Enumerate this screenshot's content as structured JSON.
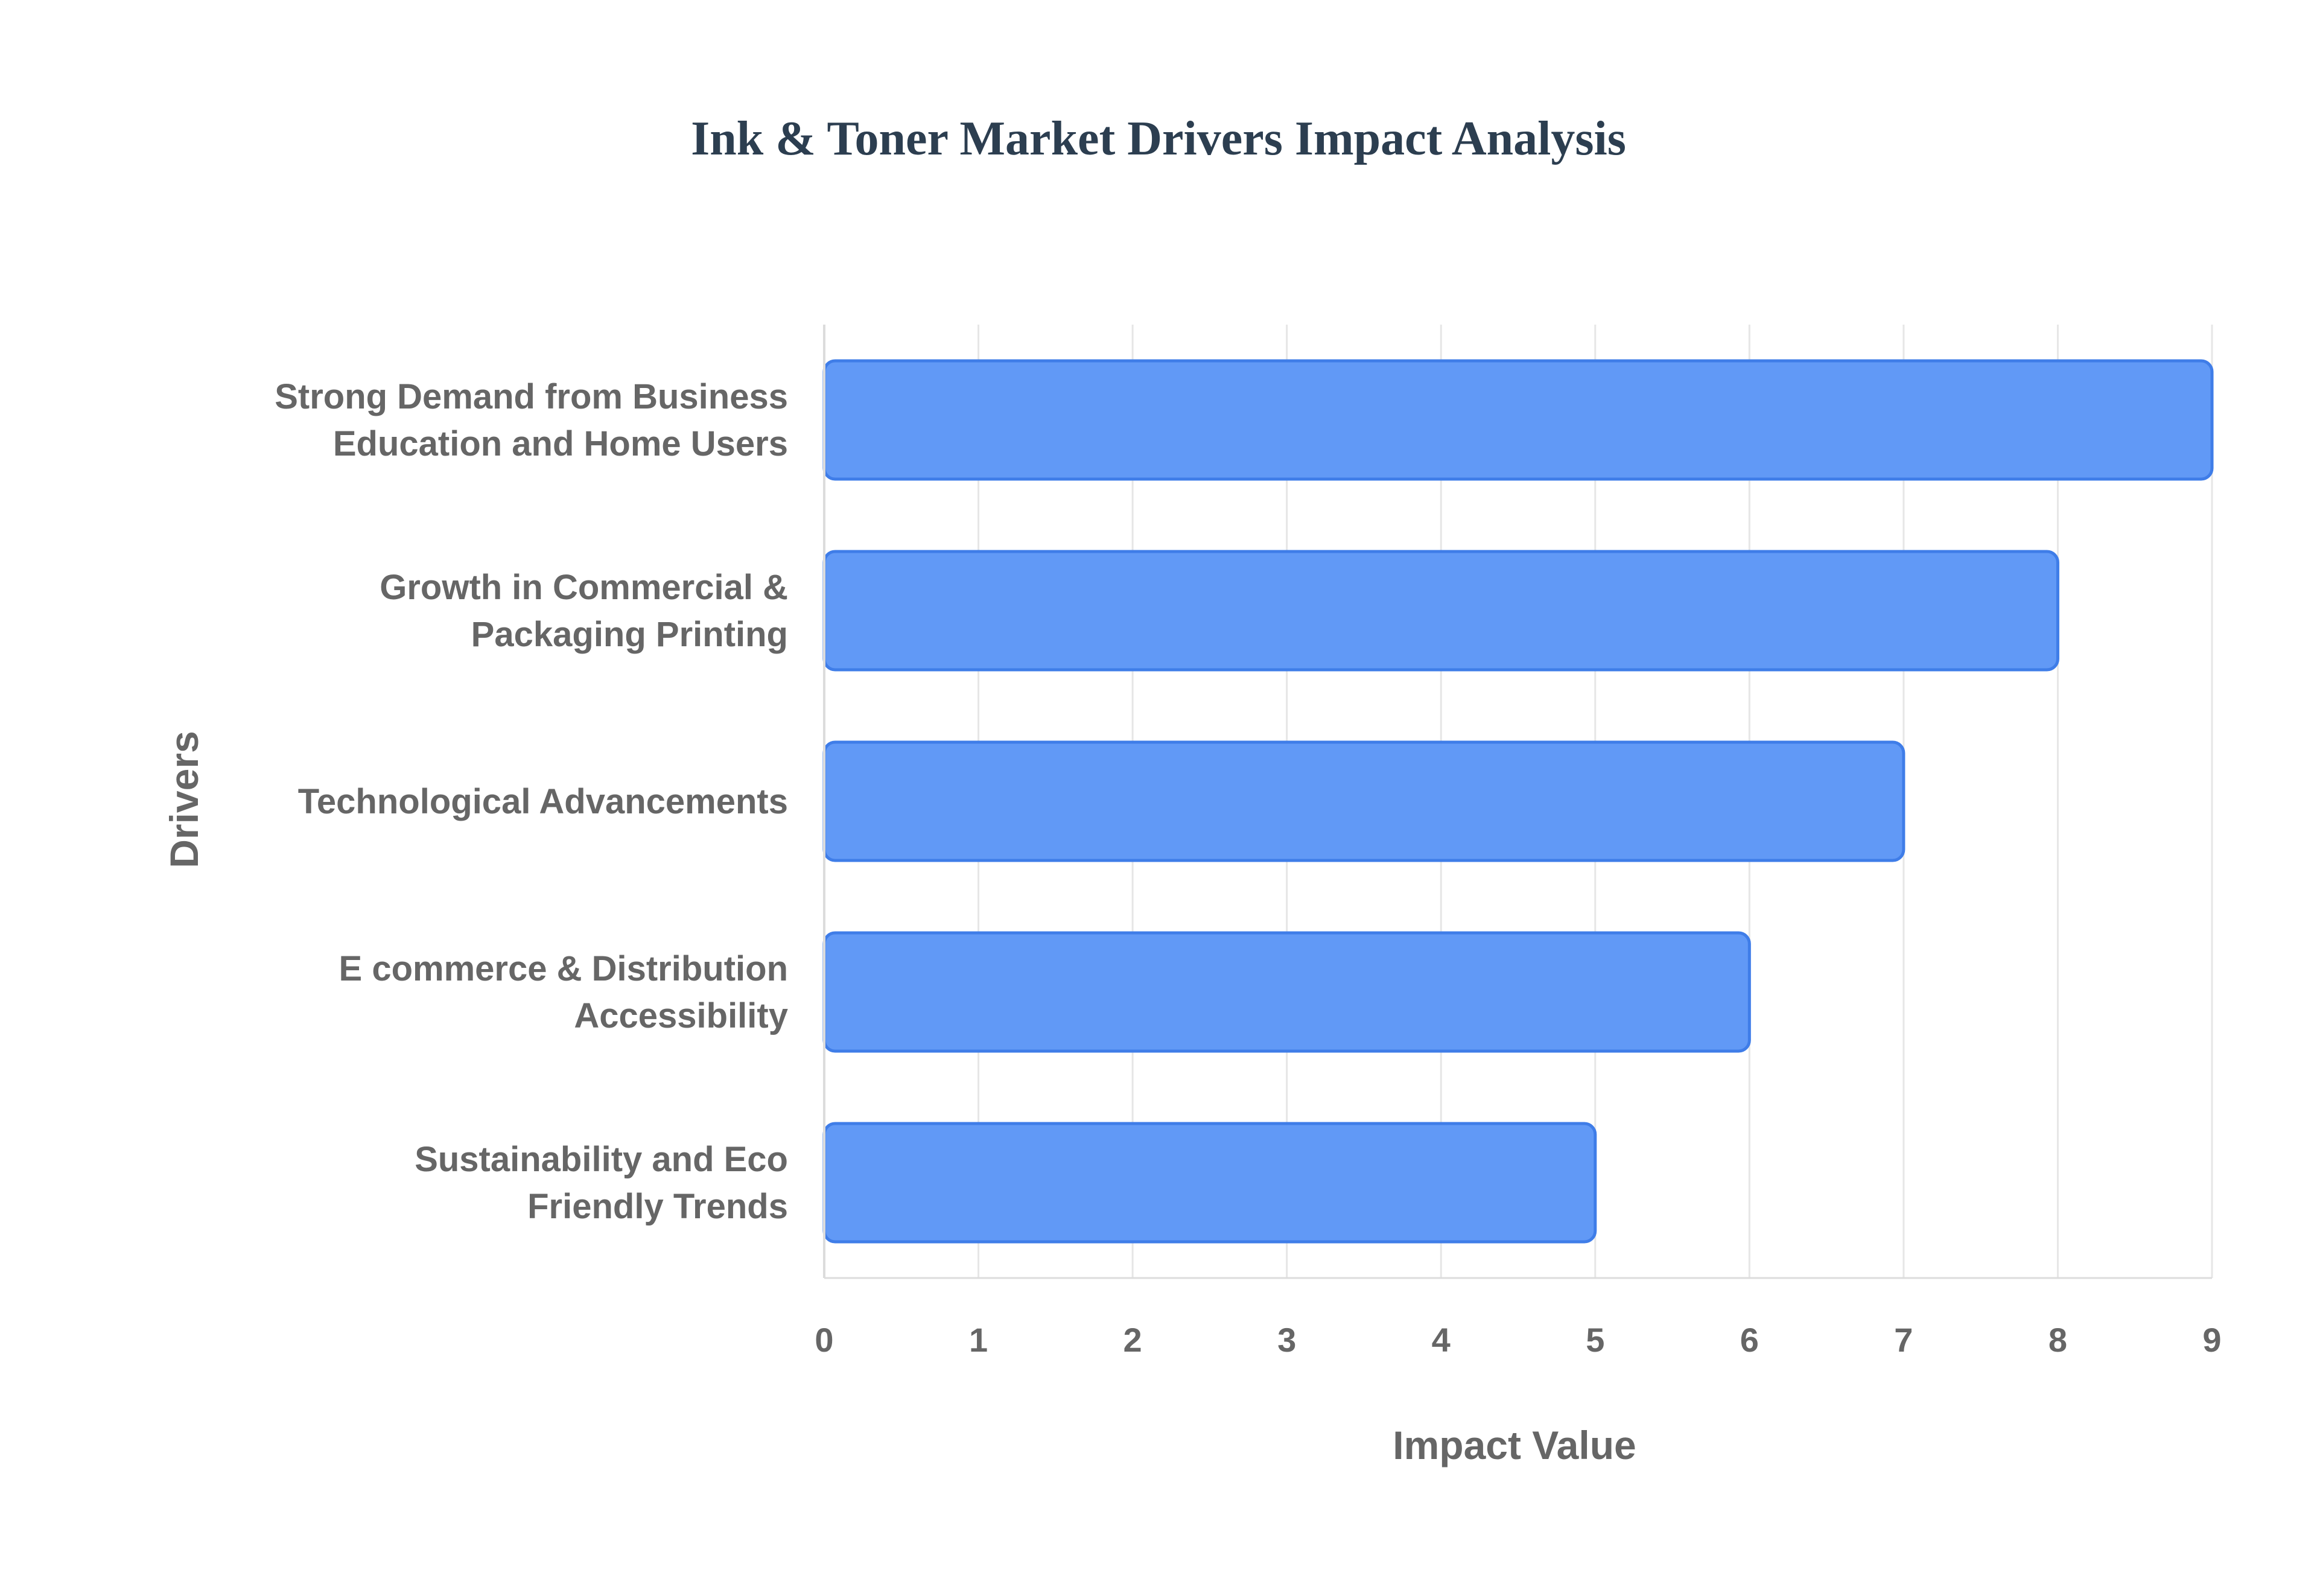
{
  "chart_data": {
    "type": "bar",
    "orientation": "horizontal",
    "title": "Ink & Toner Market Drivers Impact Analysis",
    "xlabel": "Impact Value",
    "ylabel": "Drivers",
    "categories": [
      [
        "Strong Demand from Business",
        "Education and Home Users"
      ],
      [
        "Growth in Commercial &",
        "Packaging Printing"
      ],
      [
        "Technological Advancements"
      ],
      [
        "E commerce & Distribution",
        "Accessibility"
      ],
      [
        "Sustainability and Eco",
        "Friendly Trends"
      ]
    ],
    "values": [
      9,
      8,
      7,
      6,
      5
    ],
    "xlim": [
      0,
      9
    ],
    "xticks": [
      "0",
      "1",
      "2",
      "3",
      "4",
      "5",
      "6",
      "7",
      "8",
      "9"
    ],
    "grid": true,
    "legend": "none",
    "colors": {
      "bar_fill": "#6199f6",
      "bar_stroke": "#3f7de8",
      "grid": "#e6e6e6",
      "axis": "#dcdcdc",
      "title": "#2c3e50",
      "text": "#666666"
    }
  }
}
